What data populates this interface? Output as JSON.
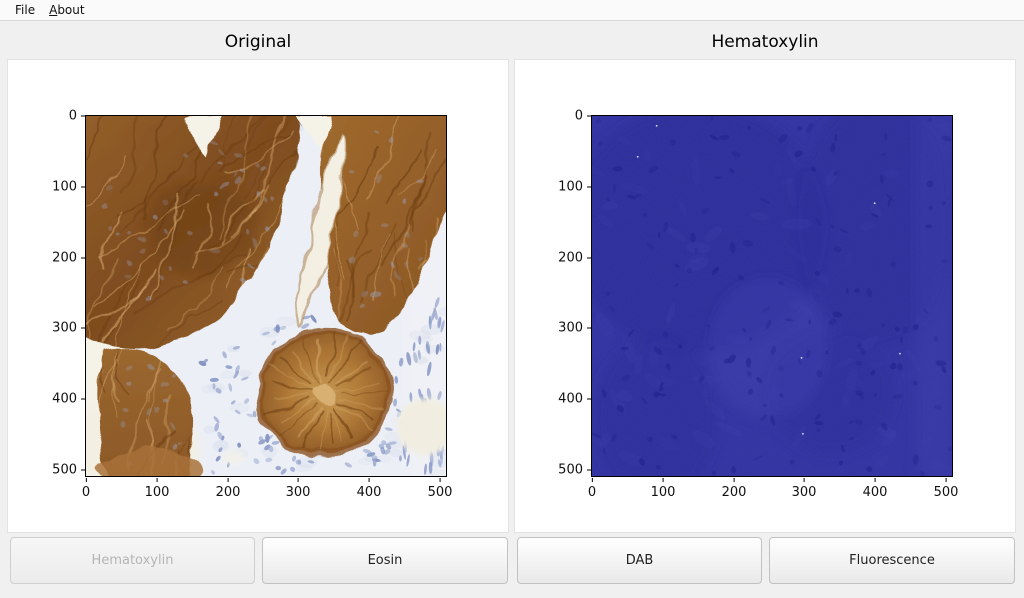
{
  "menubar": {
    "file_label": "File",
    "about_label": "About",
    "about_label_head": "A",
    "about_label_tail": "bout"
  },
  "panels": [
    {
      "title": "Original",
      "description": "IHC histology micrograph: brown DAB-stained glands with pale stroma and blue nuclei",
      "x_ticks": [
        "0",
        "100",
        "200",
        "300",
        "400",
        "500"
      ],
      "y_ticks": [
        "0",
        "100",
        "200",
        "300",
        "400",
        "500"
      ]
    },
    {
      "title": "Hematoxylin",
      "description": "Hematoxylin channel: uniform deep blue image with faint darker nuclei texture",
      "x_ticks": [
        "0",
        "100",
        "200",
        "300",
        "400",
        "500"
      ],
      "y_ticks": [
        "0",
        "100",
        "200",
        "300",
        "400",
        "500"
      ]
    }
  ],
  "buttons": [
    {
      "label": "Hematoxylin",
      "enabled": false
    },
    {
      "label": "Eosin",
      "enabled": true
    },
    {
      "label": "DAB",
      "enabled": true
    },
    {
      "label": "Fluorescence",
      "enabled": true
    }
  ],
  "colors": {
    "window_bg": "#f0f0f0",
    "card_bg": "#ffffff",
    "hematoxylin_blue": "#3434a2",
    "dab_brown": "#96622c",
    "disabled_text": "#b5b5b5"
  }
}
